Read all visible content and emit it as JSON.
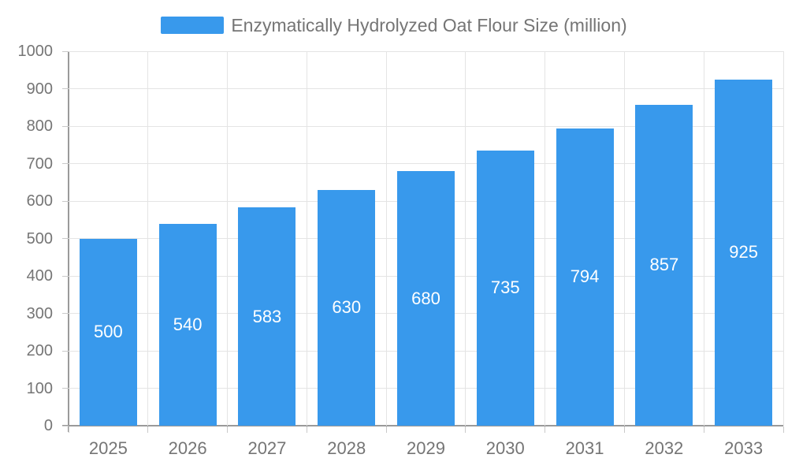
{
  "legend": {
    "label": "Enzymatically Hydrolyzed Oat Flour Size (million)"
  },
  "colors": {
    "bar": "#3899EC",
    "gridline": "#E4E4E4",
    "axis_line": "#9A9A9A",
    "tick_mark": "#C9C9C9",
    "axis_text": "#757575",
    "bar_value_text": "#FFFFFF",
    "background": "#FFFFFF"
  },
  "chart_data": {
    "type": "bar",
    "title": "Enzymatically Hydrolyzed Oat Flour Size (million)",
    "series_name": "Enzymatically Hydrolyzed Oat Flour Size (million)",
    "categories": [
      "2025",
      "2026",
      "2027",
      "2028",
      "2029",
      "2030",
      "2031",
      "2032",
      "2033"
    ],
    "values": [
      500,
      540,
      583,
      630,
      680,
      735,
      794,
      857,
      925
    ],
    "xlabel": "",
    "ylabel": "",
    "ylim": [
      0,
      1000
    ],
    "ytick_interval": 100,
    "ytick_labels": [
      "0",
      "100",
      "200",
      "300",
      "400",
      "500",
      "600",
      "700",
      "800",
      "900",
      "1000"
    ],
    "grid": true,
    "vertical_gridlines": true,
    "legend_position": "top-center",
    "value_labels_position": "inside-center"
  }
}
